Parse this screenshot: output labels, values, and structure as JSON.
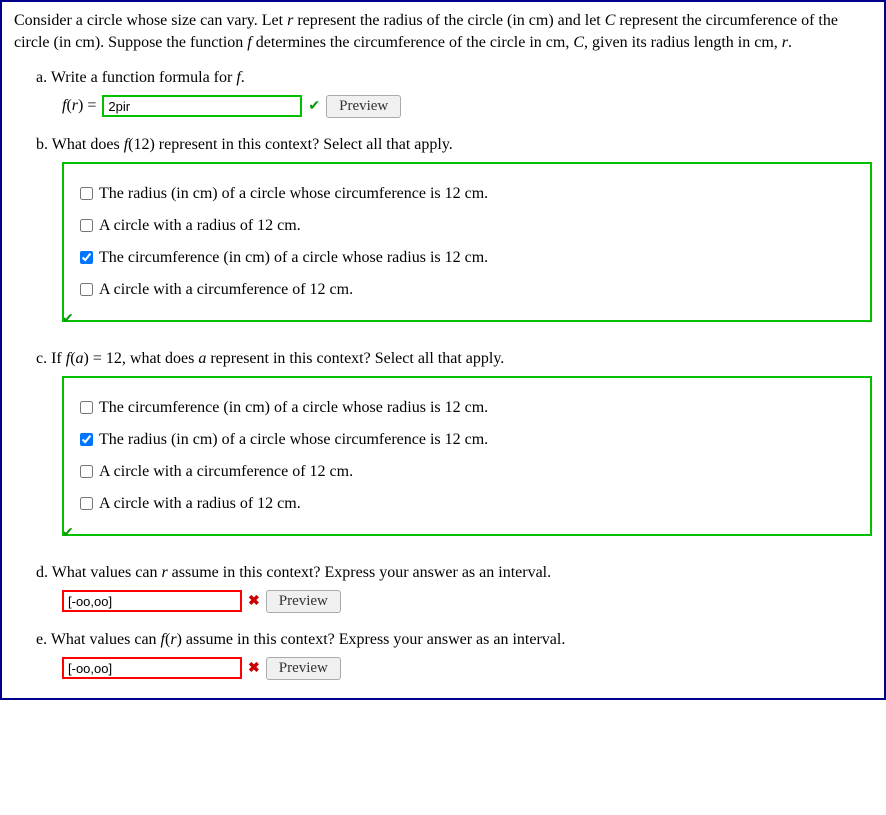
{
  "intro_html": "Consider a circle whose size can vary. Let <span class='ital'>r</span> represent the radius of the circle (in cm) and let <span class='ital'>C</span> represent the circumference of the circle (in cm). Suppose the function <span class='ital'>f</span> determines the circumference of the circle in cm, <span class='ital'>C</span>, given its radius length in cm, <span class='ital'>r</span>.",
  "parts": {
    "a": {
      "label_html": "a. Write a function formula for <span class='ital'>f</span>.",
      "lhs_html": "<span class='ital'>f</span>(<span class='ital'>r</span>) = ",
      "input_value": "2pir",
      "preview": "Preview",
      "correct": true
    },
    "b": {
      "label_html": "b. What does <span class='ital'>f</span>(12) represent in this context? Select all that apply.",
      "choices": [
        {
          "text": "The radius (in cm) of a circle whose circumference is 12 cm.",
          "checked": false
        },
        {
          "text": "A circle with a radius of 12 cm.",
          "checked": false
        },
        {
          "text": "The circumference (in cm) of a circle whose radius is 12 cm.",
          "checked": true
        },
        {
          "text": "A circle with a circumference of 12 cm.",
          "checked": false
        }
      ],
      "correct": true
    },
    "c": {
      "label_html": "c. If <span class='ital'>f</span>(<span class='ital'>a</span>) = 12, what does <span class='ital'>a</span> represent in this context? Select all that apply.",
      "choices": [
        {
          "text": "The circumference (in cm) of a circle whose radius is 12 cm.",
          "checked": false
        },
        {
          "text": "The radius (in cm) of a circle whose circumference is 12 cm.",
          "checked": true
        },
        {
          "text": "A circle with a circumference of 12 cm.",
          "checked": false
        },
        {
          "text": "A circle with a radius of 12 cm.",
          "checked": false
        }
      ],
      "correct": true
    },
    "d": {
      "label_html": "d. What values can <span class='ital'>r</span> assume in this context? Express your answer as an interval.",
      "input_value": "[-oo,oo]",
      "preview": "Preview",
      "correct": false
    },
    "e": {
      "label_html": "e. What values can <span class='ital'>f</span>(<span class='ital'>r</span>) assume in this context? Express your answer as an interval.",
      "input_value": "[-oo,oo]",
      "preview": "Preview",
      "correct": false
    }
  },
  "colors": {
    "border_outer": "#00008b",
    "border_correct": "#00c000",
    "border_incorrect": "#ff0000",
    "check": "#009900",
    "cross": "#cc0000"
  }
}
